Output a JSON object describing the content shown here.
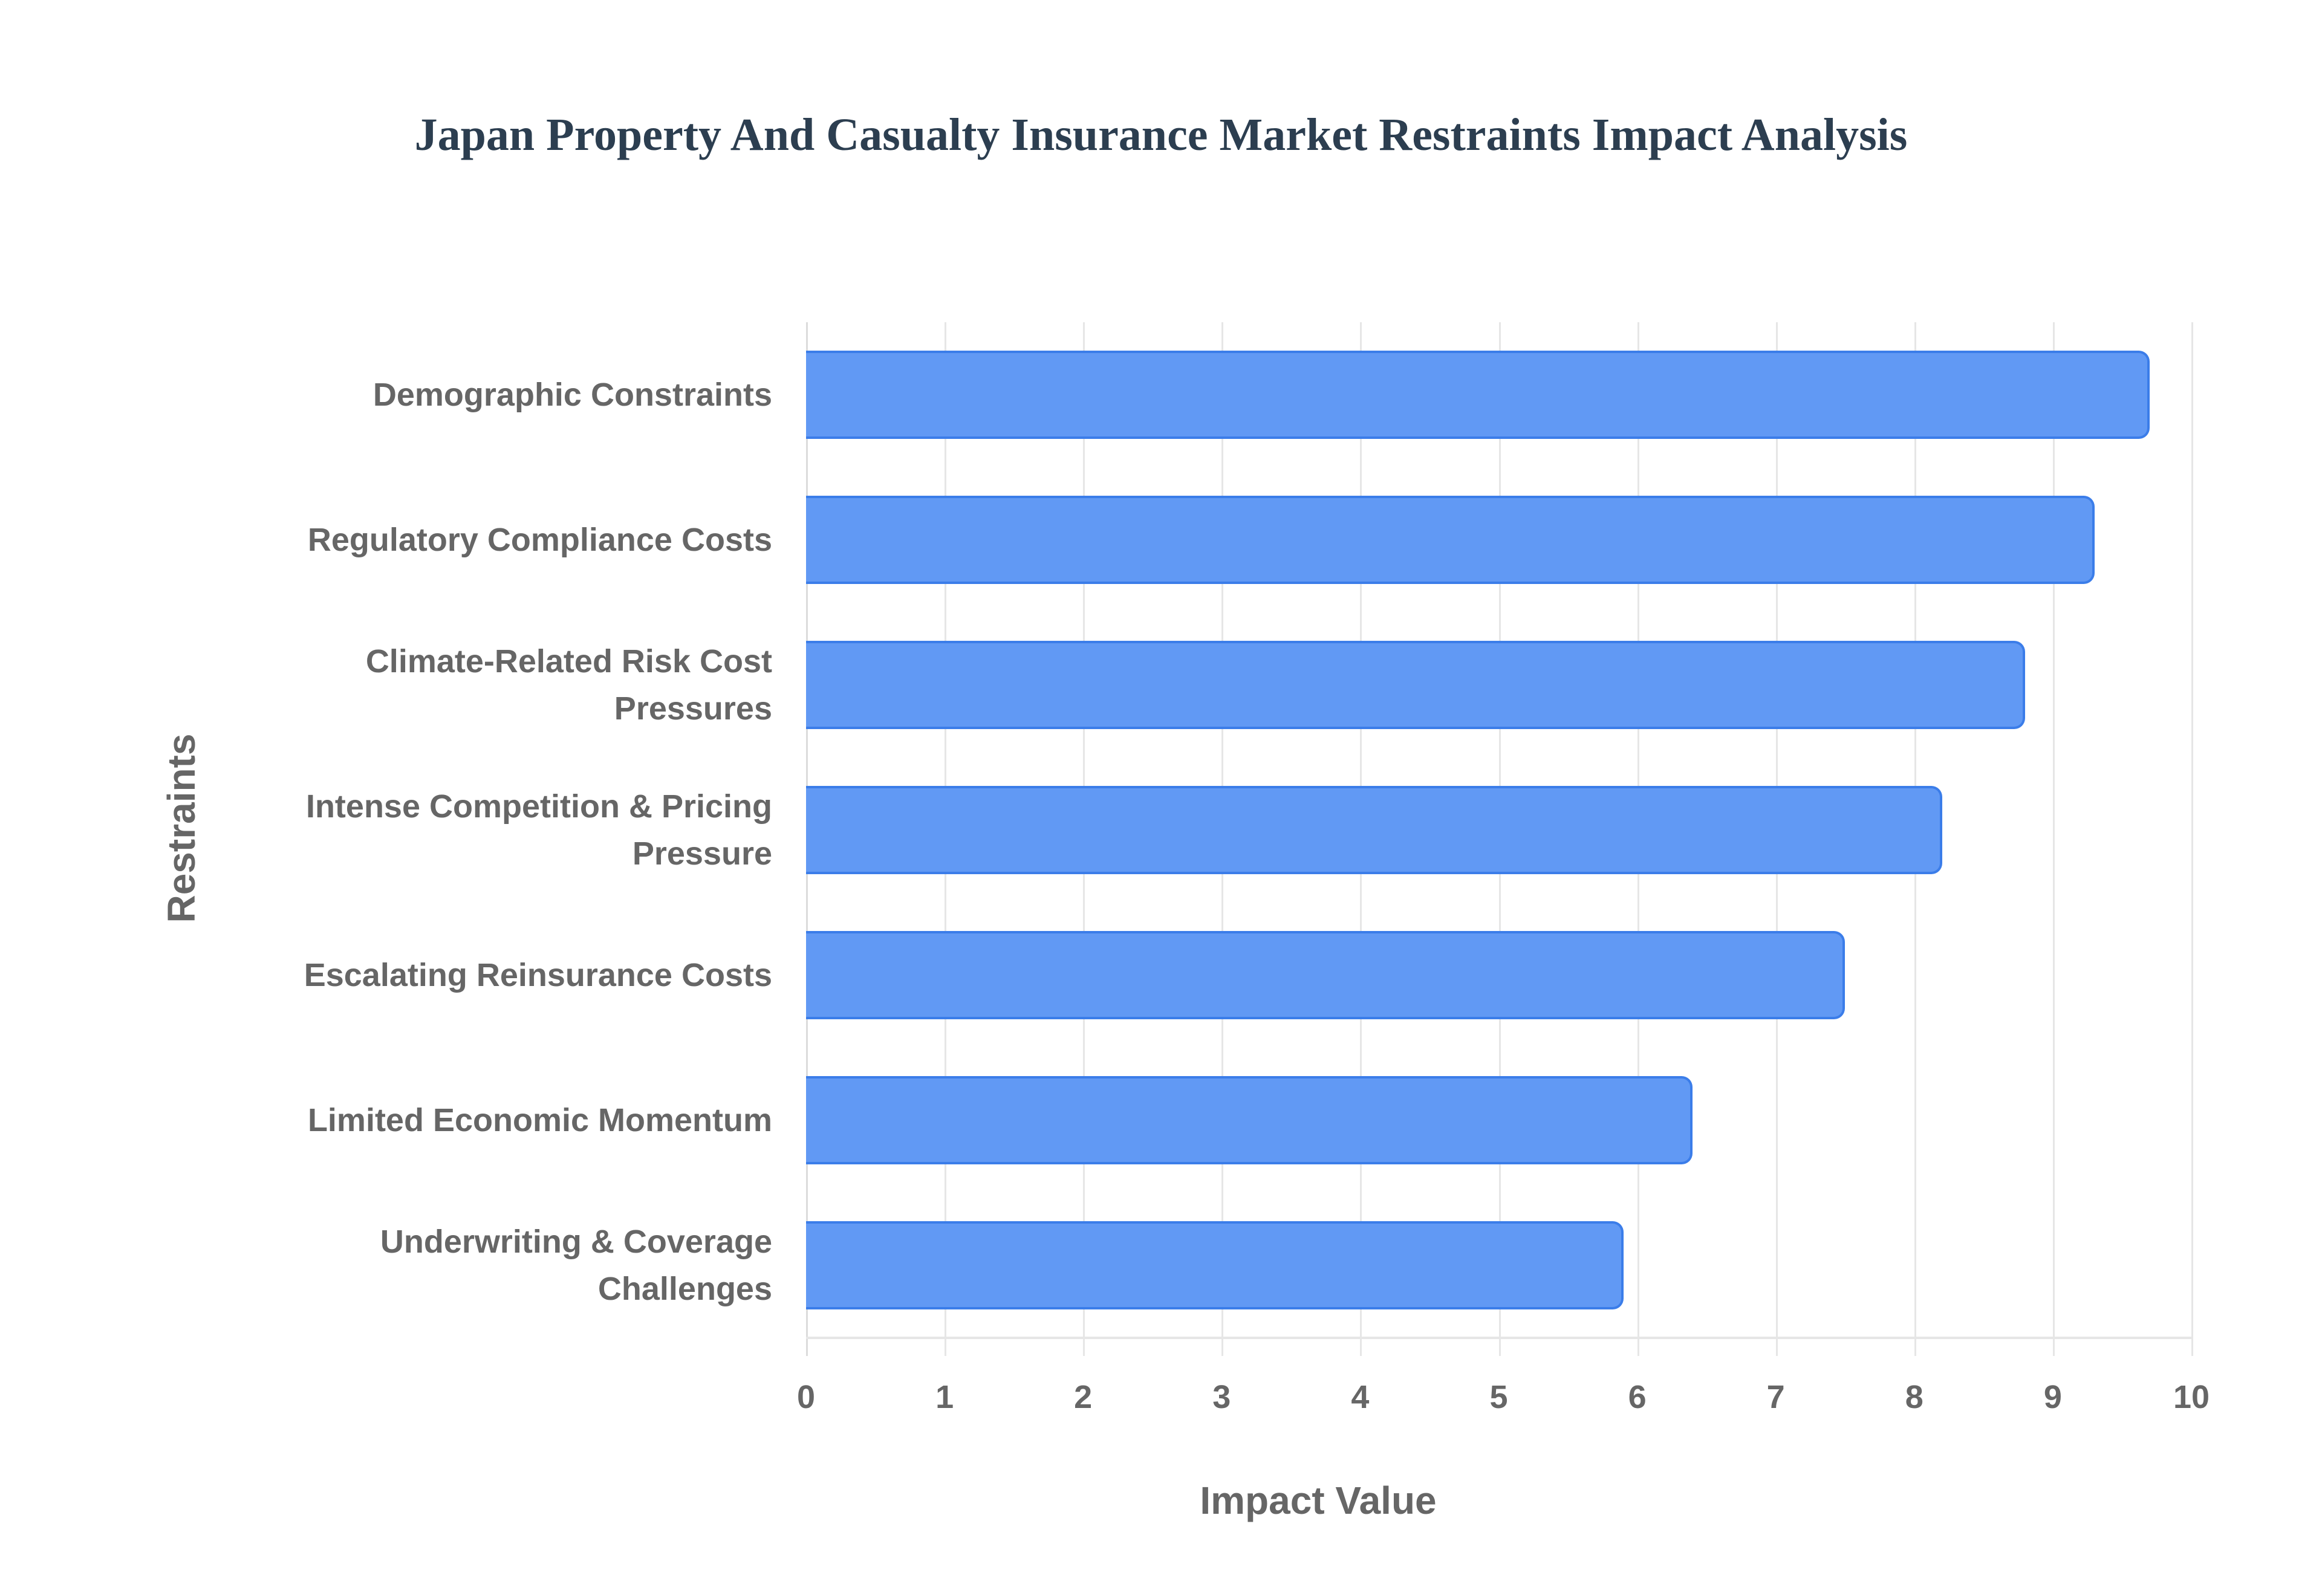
{
  "title": "Japan Property And Casualty Insurance Market Restraints Impact Analysis",
  "x_axis": {
    "title": "Impact Value",
    "ticks": [
      "0",
      "1",
      "2",
      "3",
      "4",
      "5",
      "6",
      "7",
      "8",
      "9",
      "10"
    ]
  },
  "y_axis": {
    "title": "Restraints"
  },
  "bars": [
    {
      "label_lines": [
        "Demographic Constraints"
      ],
      "value": 9.7
    },
    {
      "label_lines": [
        "Regulatory Compliance Costs"
      ],
      "value": 9.3
    },
    {
      "label_lines": [
        "Climate-Related Risk Cost",
        "Pressures"
      ],
      "value": 8.8
    },
    {
      "label_lines": [
        "Intense Competition & Pricing",
        "Pressure"
      ],
      "value": 8.2
    },
    {
      "label_lines": [
        "Escalating Reinsurance Costs"
      ],
      "value": 7.5
    },
    {
      "label_lines": [
        "Limited Economic Momentum"
      ],
      "value": 6.4
    },
    {
      "label_lines": [
        "Underwriting & Coverage",
        "Challenges"
      ],
      "value": 5.9
    }
  ],
  "colors": {
    "bar_fill": "#6199f4",
    "bar_border": "#3b7de9",
    "title": "#2c3e50",
    "axis_text": "#666666",
    "grid": "#e6e6e6"
  },
  "chart_data": {
    "type": "bar",
    "orientation": "horizontal",
    "title": "Japan Property And Casualty Insurance Market Restraints Impact Analysis",
    "xlabel": "Impact Value",
    "ylabel": "Restraints",
    "categories": [
      "Demographic Constraints",
      "Regulatory Compliance Costs",
      "Climate-Related Risk Cost Pressures",
      "Intense Competition & Pricing Pressure",
      "Escalating Reinsurance Costs",
      "Limited Economic Momentum",
      "Underwriting & Coverage Challenges"
    ],
    "values": [
      9.7,
      9.3,
      8.8,
      8.2,
      7.5,
      6.4,
      5.9
    ],
    "xlim": [
      0,
      10
    ],
    "x_ticks": [
      0,
      1,
      2,
      3,
      4,
      5,
      6,
      7,
      8,
      9,
      10
    ],
    "grid": true,
    "legend": null
  }
}
